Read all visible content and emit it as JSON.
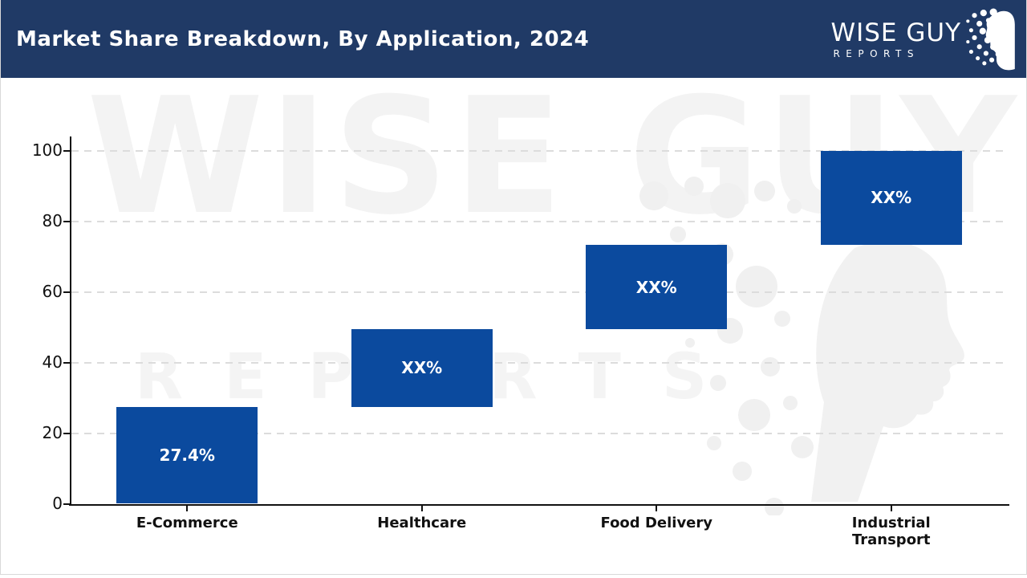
{
  "header": {
    "title": "Market Share Breakdown, By Application, 2024",
    "logo": {
      "primary": "WISE GUY",
      "secondary": "REPORTS"
    }
  },
  "watermark": {
    "primary": "WISE GUY",
    "secondary": "R E P O R T S"
  },
  "chart_data": {
    "type": "bar",
    "subtype": "waterfall",
    "title": "Market Share Breakdown, By Application, 2024",
    "categories": [
      "E-Commerce",
      "Healthcare",
      "Food Delivery",
      "Industrial Transport"
    ],
    "bars": [
      {
        "category": "E-Commerce",
        "label": "27.4%",
        "start": 0,
        "end": 27.4
      },
      {
        "category": "Healthcare",
        "label": "XX%",
        "start": 27.4,
        "end": 49.5
      },
      {
        "category": "Food Delivery",
        "label": "XX%",
        "start": 49.5,
        "end": 73.2
      },
      {
        "category": "Industrial Transport",
        "label": "XX%",
        "start": 73.2,
        "end": 100
      }
    ],
    "yticks": [
      0,
      20,
      40,
      60,
      80,
      100
    ],
    "ylim": [
      0,
      104
    ],
    "xlabel": "",
    "ylabel": "",
    "grid": "horizontal-dashed",
    "legend": "none",
    "colors": {
      "bar": "#0b4a9e",
      "bar_label": "#ffffff",
      "axis": "#111111",
      "gridline": "#dcdcdc",
      "header_bg": "#203a66",
      "watermark": "#f2f2f2"
    }
  }
}
